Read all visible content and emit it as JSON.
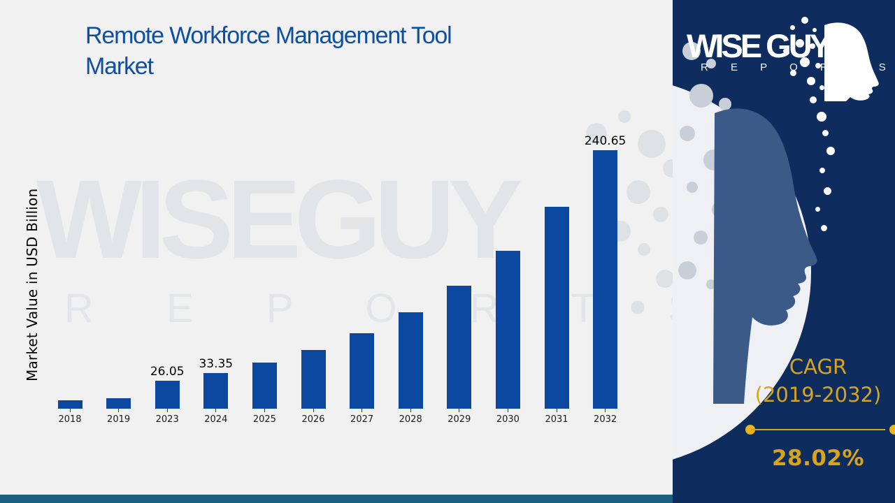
{
  "header": {
    "title_line1": "Remote Workforce Management Tool",
    "title_line2": "Market"
  },
  "chart_data": {
    "type": "bar",
    "title": "Remote Workforce Management Tool Market",
    "xlabel": "",
    "ylabel": "Market Value in USD Billion",
    "ylim": [
      0,
      240.65
    ],
    "grid": false,
    "legend": "none",
    "bar_color": "#0c47a0",
    "categories": [
      "2018",
      "2019",
      "2023",
      "2024",
      "2025",
      "2026",
      "2027",
      "2028",
      "2029",
      "2030",
      "2031",
      "2032"
    ],
    "values": [
      7.5,
      9.7,
      26.05,
      33.35,
      42.69,
      54.65,
      69.96,
      89.57,
      114.66,
      146.79,
      187.92,
      240.65
    ],
    "value_labels": [
      "",
      "",
      "26.05",
      "33.35",
      "",
      "",
      "",
      "",
      "",
      "",
      "",
      "240.65"
    ]
  },
  "watermark": {
    "line1": "WISEGUY",
    "line2": "R E P O R T S"
  },
  "logo": {
    "line1": "WISE GUY",
    "line2": "R E P O R T S"
  },
  "cagr": {
    "label": "CAGR",
    "range": "(2019-2032)",
    "value": "28.02%"
  },
  "colors": {
    "bar_blue": "#0c47a0",
    "title_blue": "#0d4fa0",
    "panel_navy": "#0e2d5e",
    "gold": "#d7a41c",
    "teal_strip": "#1a6080",
    "background": "#f1f1f2",
    "watermark_gray": "#e2e4e8",
    "face_blue": "#3b5a87"
  }
}
